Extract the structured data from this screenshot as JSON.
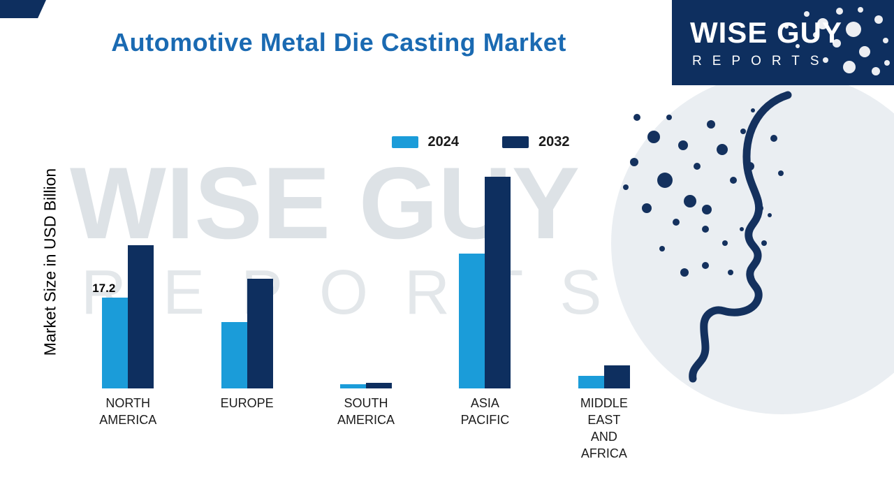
{
  "page": {
    "title": "Automotive Metal Die Casting Market"
  },
  "branding": {
    "logo_line1": "WISE GUY",
    "logo_line2": "REPORTS"
  },
  "watermark": {
    "line1": "WISE GUY",
    "line2": "REPORTS"
  },
  "colors": {
    "accent_blue": "#1b9cd9",
    "navy": "#0e2f5f",
    "title_blue": "#1a6ab2",
    "watermark_gray": "#dde2e6"
  },
  "chart_data": {
    "type": "bar",
    "title": "Automotive Metal Die Casting Market",
    "xlabel": "",
    "ylabel": "Market Size in USD Billion",
    "unit": "USD Billion",
    "categories": [
      "NORTH AMERICA",
      "EUROPE",
      "SOUTH AMERICA",
      "ASIA PACIFIC",
      "MIDDLE EAST AND AFRICA"
    ],
    "series": [
      {
        "name": "2024",
        "color": "#1b9cd9",
        "values": [
          17.2,
          12.6,
          0.8,
          25.5,
          2.4
        ]
      },
      {
        "name": "2032",
        "color": "#0e2f5f",
        "values": [
          27.1,
          20.8,
          1.1,
          40,
          4.3
        ]
      }
    ],
    "ylim": [
      0,
      42
    ],
    "grid": false,
    "legend_position": "top",
    "annotations": [
      {
        "series": "2024",
        "category": "NORTH AMERICA",
        "text": "17.2"
      }
    ]
  }
}
